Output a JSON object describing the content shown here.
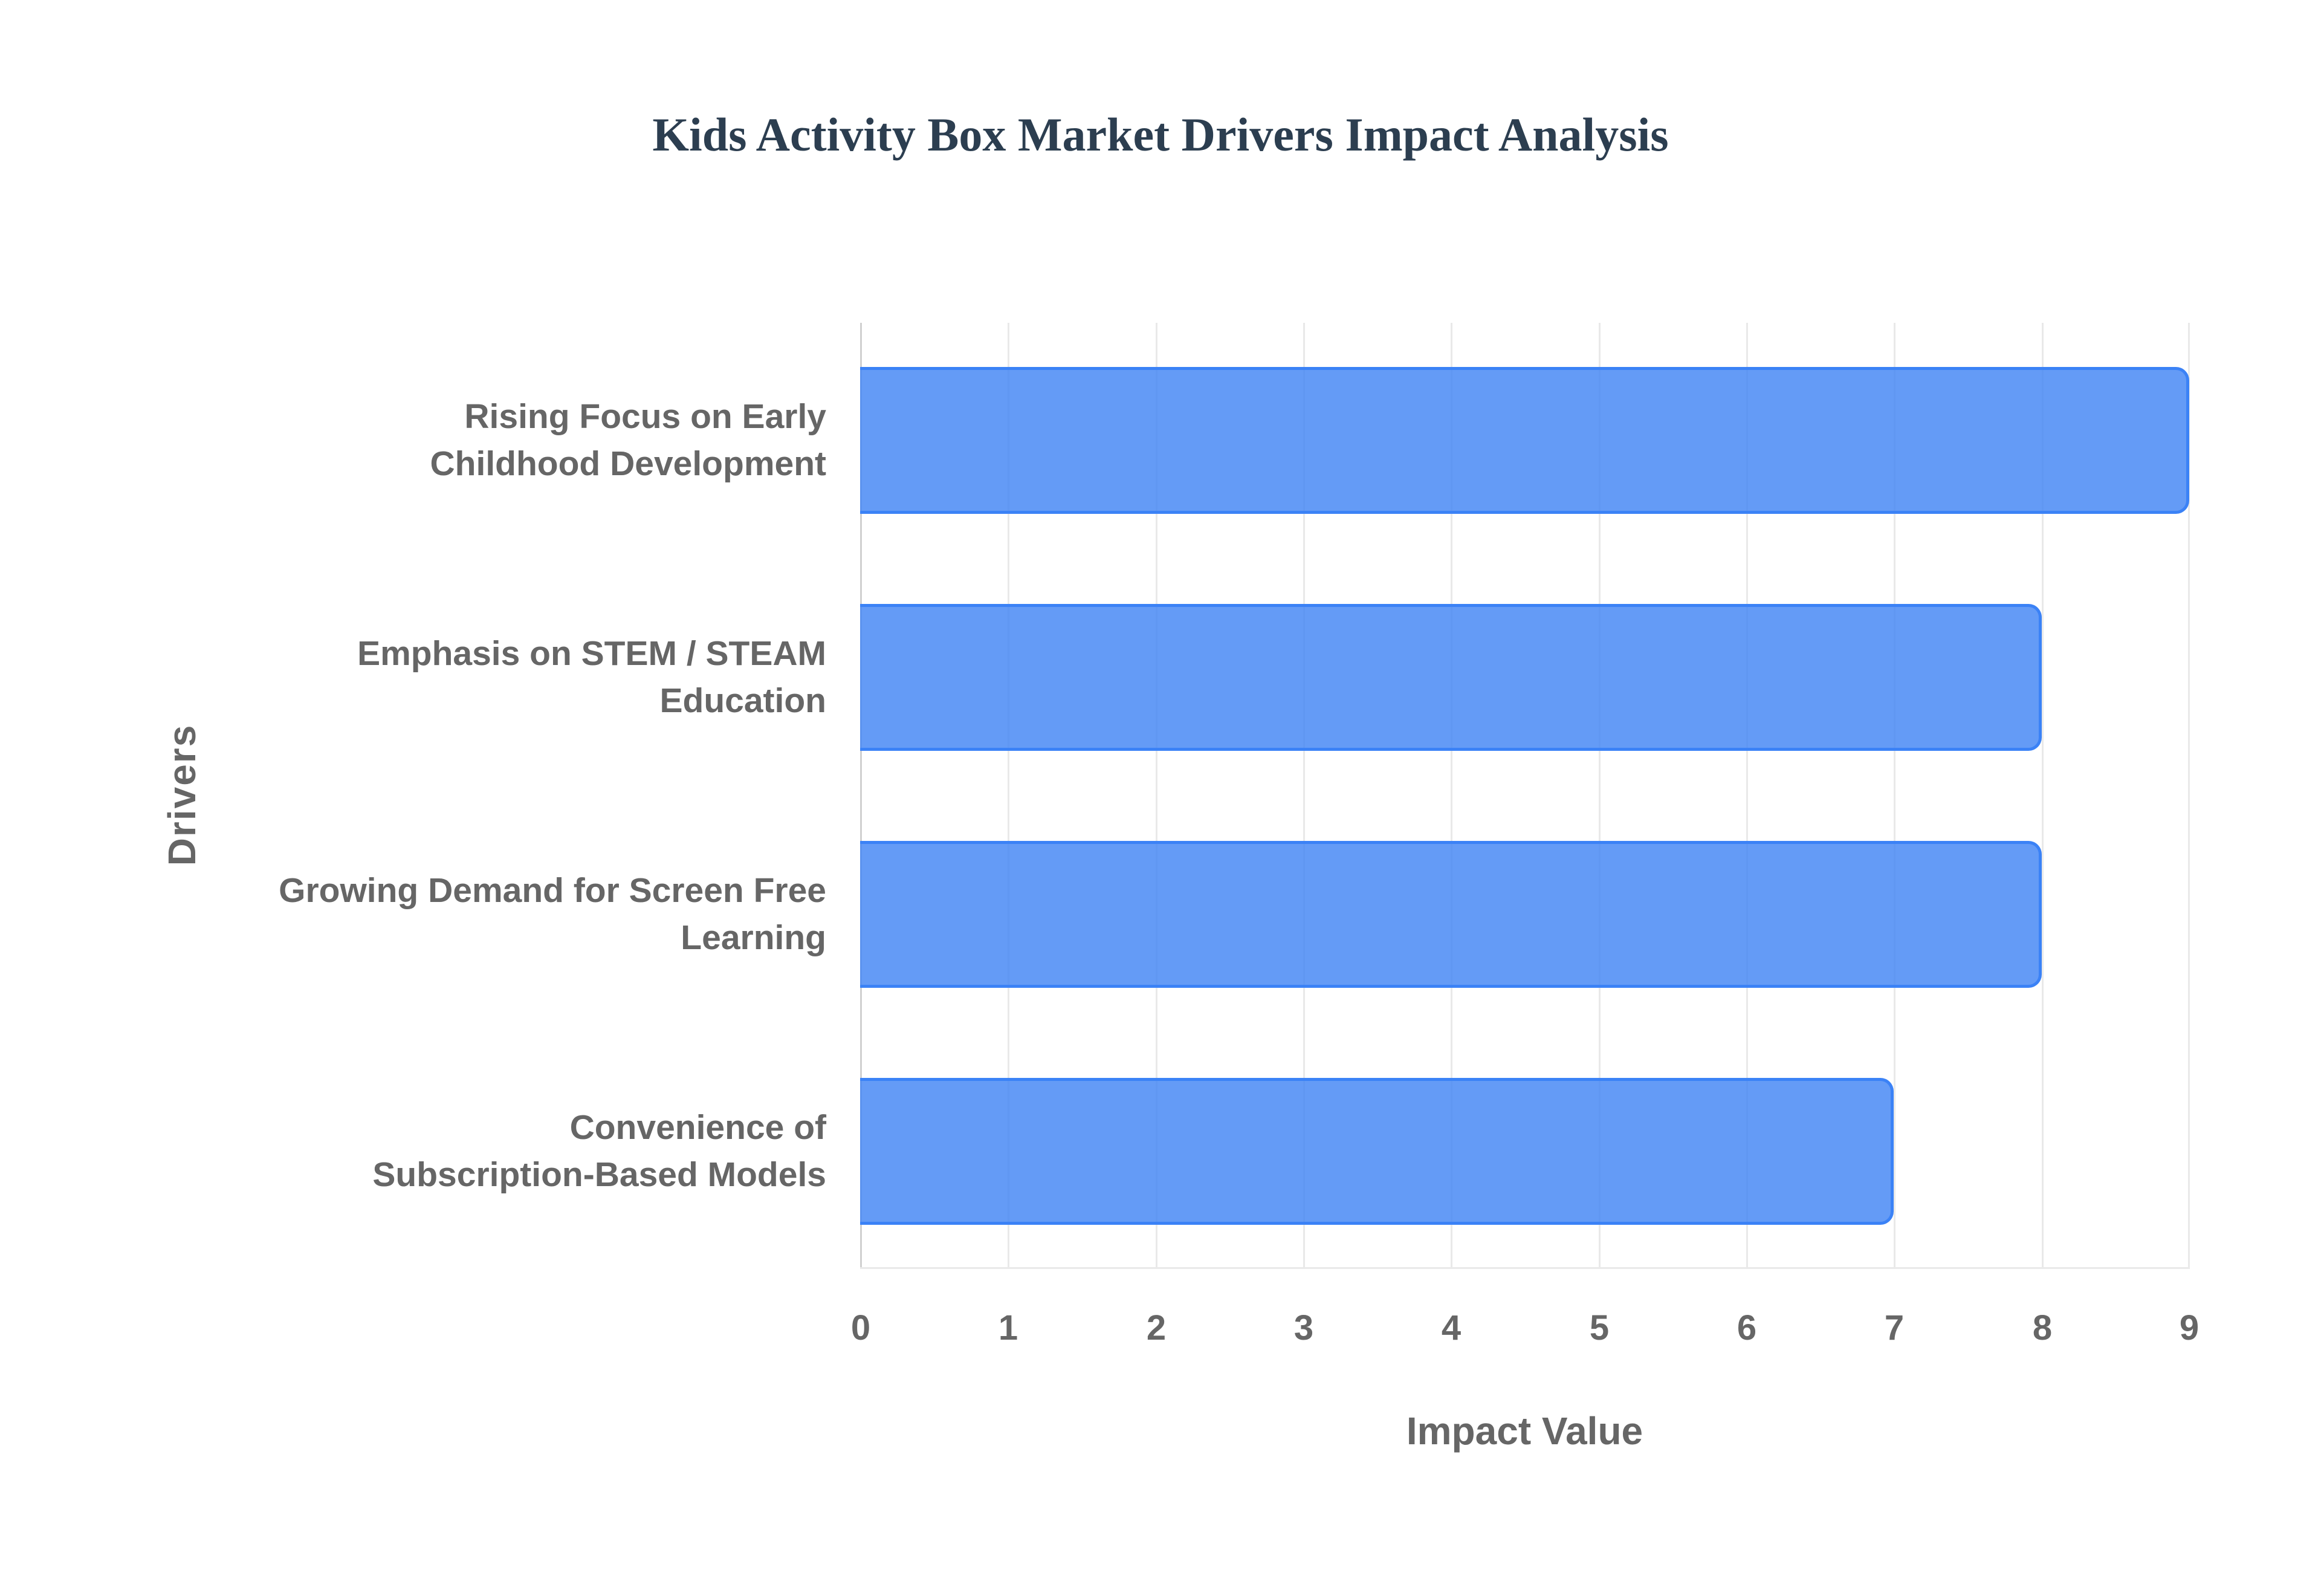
{
  "chart_data": {
    "type": "bar",
    "orientation": "horizontal",
    "title": "Kids Activity Box Market Drivers Impact Analysis",
    "xlabel": "Impact Value",
    "ylabel": "Drivers",
    "categories": [
      "Rising Focus on Early Childhood Development",
      "Emphasis on STEM / STEAM Education",
      "Growing Demand for Screen Free Learning",
      "Convenience of Subscription-Based Models"
    ],
    "category_lines": [
      [
        "Rising Focus on Early",
        "Childhood Development"
      ],
      [
        "Emphasis on STEM / STEAM",
        "Education"
      ],
      [
        "Growing Demand for Screen Free",
        "Learning"
      ],
      [
        "Convenience of",
        "Subscription-Based Models"
      ]
    ],
    "values": [
      9,
      8,
      8,
      7
    ],
    "xlim": [
      0,
      9
    ],
    "xticks": [
      "0",
      "1",
      "2",
      "3",
      "4",
      "5",
      "6",
      "7",
      "8",
      "9"
    ],
    "grid": true,
    "legend": null,
    "bar_color": "#4285f4",
    "bar_border_color": "#3b82f6"
  }
}
